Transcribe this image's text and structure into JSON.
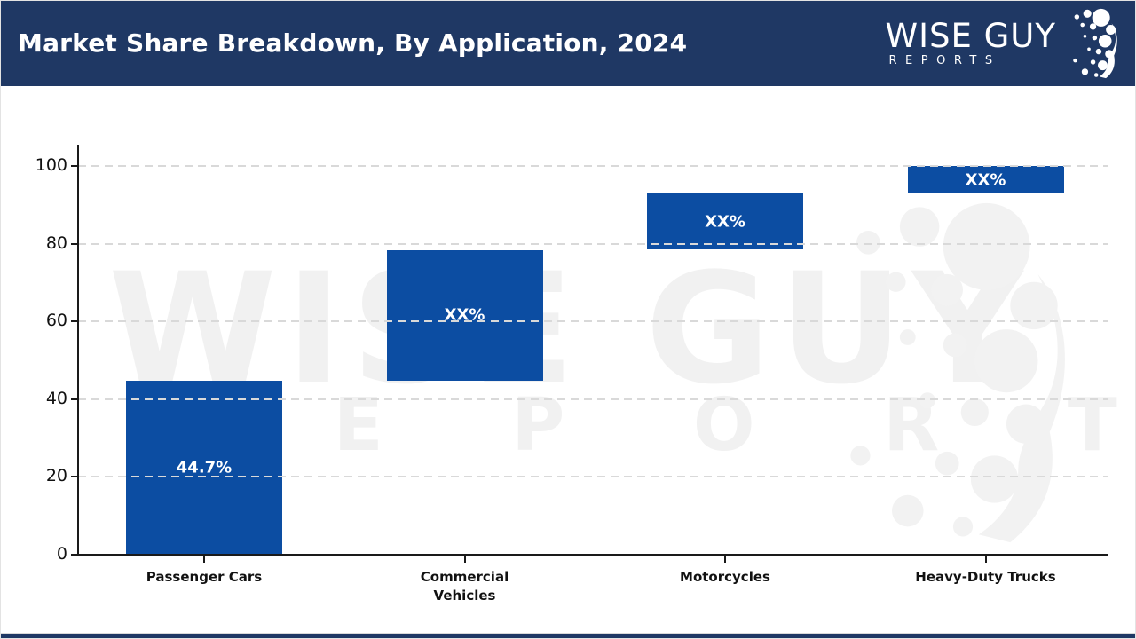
{
  "header": {
    "title": "Market Share Breakdown, By Application, 2024",
    "logo_line1": "WISE GUY",
    "logo_line2": "REPORTS",
    "bg_color": "#1f3864"
  },
  "watermark": {
    "line1": "WISE GUY",
    "line2": "R E P O R T S"
  },
  "chart_data": {
    "type": "bar",
    "subtype": "waterfall",
    "title": "Market Share Breakdown, By Application, 2024",
    "categories": [
      "Passenger Cars",
      "Commercial Vehicles",
      "Motorcycles",
      "Heavy-Duty Trucks"
    ],
    "category_label_lines": [
      [
        "Passenger Cars"
      ],
      [
        "Commercial",
        "Vehicles"
      ],
      [
        "Motorcycles"
      ],
      [
        "Heavy-Duty Trucks"
      ]
    ],
    "series": [
      {
        "name": "Market Share (%)",
        "segments": [
          {
            "category": "Passenger Cars",
            "start": 0,
            "end": 44.7,
            "label": "44.7%"
          },
          {
            "category": "Commercial Vehicles",
            "start": 44.7,
            "end": 78.5,
            "label": "XX%"
          },
          {
            "category": "Motorcycles",
            "start": 78.5,
            "end": 93,
            "label": "XX%"
          },
          {
            "category": "Heavy-Duty Trucks",
            "start": 93,
            "end": 100,
            "label": "XX%"
          }
        ]
      }
    ],
    "xlabel": "",
    "ylabel": "",
    "ylim": [
      0,
      105
    ],
    "yticks": [
      0,
      20,
      40,
      60,
      80,
      100
    ],
    "grid": "horizontal dashed, drawn above bars",
    "legend": "none",
    "bar_color": "#0c4da2",
    "bar_label_color": "#ffffff",
    "grid_color": "#d9d9d9",
    "axis_color": "#1a1a1a"
  }
}
